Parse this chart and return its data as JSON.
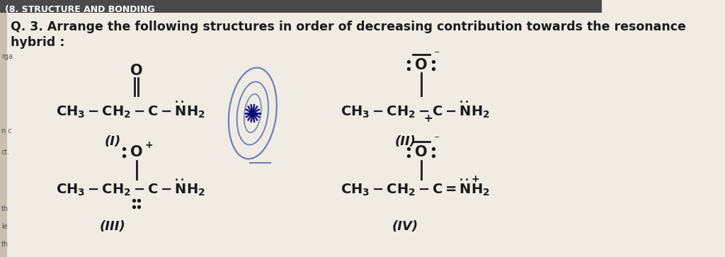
{
  "bg_color": "#e8e4dc",
  "page_bg": "#f0ece4",
  "header_text": "(8. STRUCTURE AND BONDING",
  "question_line1": "Q. 3. Arrange the following structures in order of decreasing contribution towards the resonance",
  "question_line2": "hybrid :",
  "text_color": "#1a1a1a",
  "label_I": "(I)",
  "label_II": "(II)",
  "label_III": "(III)",
  "label_IV": "(IV)"
}
